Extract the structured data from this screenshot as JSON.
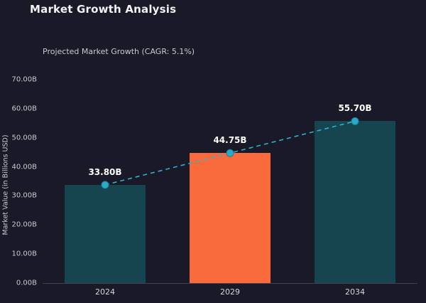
{
  "header": {
    "title": "Market Growth Analysis"
  },
  "chart_data": {
    "type": "bar",
    "title": "Market Growth Analysis",
    "subtitle": "Projected Market Growth (CAGR: 5.1%)",
    "categories": [
      "2024",
      "2029",
      "2034"
    ],
    "series": [
      {
        "name": "Market Value",
        "values": [
          33.8,
          44.75,
          55.7
        ],
        "value_labels": [
          "33.80B",
          "44.75B",
          "55.70B"
        ]
      }
    ],
    "bar_colors": [
      "#17454f",
      "#f96a3c",
      "#17454f"
    ],
    "trend_line": {
      "style": "dashed",
      "color": "#2fb0cc",
      "marker_color": "#2aa9c9",
      "marker_stroke": "#1c7d97"
    },
    "xlabel": "",
    "ylabel": "Market Value (in Billions USD)",
    "ylim": [
      0,
      70
    ],
    "ytick_step": 10,
    "ytick_labels": [
      "0.00B",
      "10.00B",
      "20.00B",
      "30.00B",
      "40.00B",
      "50.00B",
      "60.00B",
      "70.00B"
    ],
    "grid": false,
    "legend": false,
    "colors": {
      "background": "#191927",
      "title_text": "#f2f2f5",
      "tick_text": "#c9c9d4",
      "data_label_text": "#ffffff",
      "axis_line": "#40404f"
    }
  }
}
